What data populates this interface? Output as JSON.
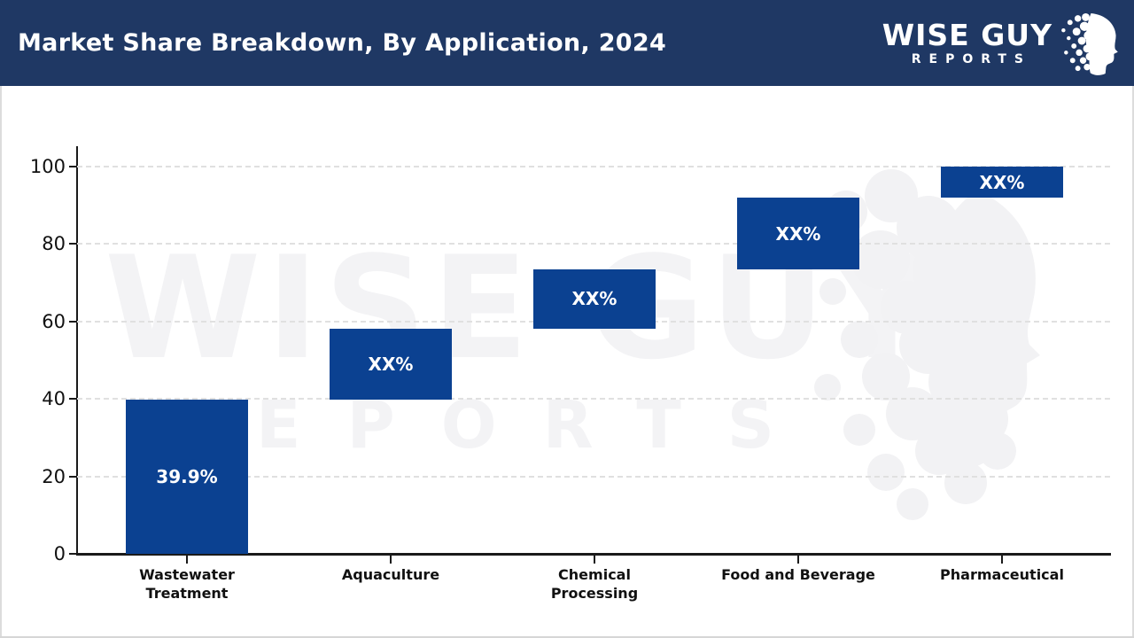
{
  "header": {
    "title": "Market Share Breakdown, By Application, 2024",
    "bg_color": "#1f3864",
    "logo": {
      "line1": "WISE GUY",
      "line2": "REPORTS"
    }
  },
  "watermark": {
    "line1": "WISE GUY",
    "line2": "REPORTS"
  },
  "chart_data": {
    "type": "bar",
    "subtype": "waterfall",
    "title": "Market Share Breakdown, By Application, 2024",
    "categories": [
      [
        "Wastewater",
        "Treatment"
      ],
      [
        "Aquaculture"
      ],
      [
        "Chemical",
        "Processing"
      ],
      [
        "Food and Beverage"
      ],
      [
        "Pharmaceutical"
      ]
    ],
    "segments": [
      {
        "category": "Wastewater Treatment",
        "start": 0,
        "end": 39.9,
        "label": "39.9%"
      },
      {
        "category": "Aquaculture",
        "start": 39.9,
        "end": 58.2,
        "label": "XX%"
      },
      {
        "category": "Chemical Processing",
        "start": 58.2,
        "end": 73.5,
        "label": "XX%"
      },
      {
        "category": "Food and Beverage",
        "start": 73.5,
        "end": 91.9,
        "label": "XX%"
      },
      {
        "category": "Pharmaceutical",
        "start": 91.9,
        "end": 100,
        "label": "XX%"
      }
    ],
    "yticks": [
      0,
      20,
      40,
      60,
      80,
      100
    ],
    "ylim": [
      0,
      100
    ],
    "bar_color": "#0b4191",
    "grid": {
      "horizontal": true,
      "style": "dashed",
      "color": "#e0e0e0"
    },
    "legend": "none"
  }
}
